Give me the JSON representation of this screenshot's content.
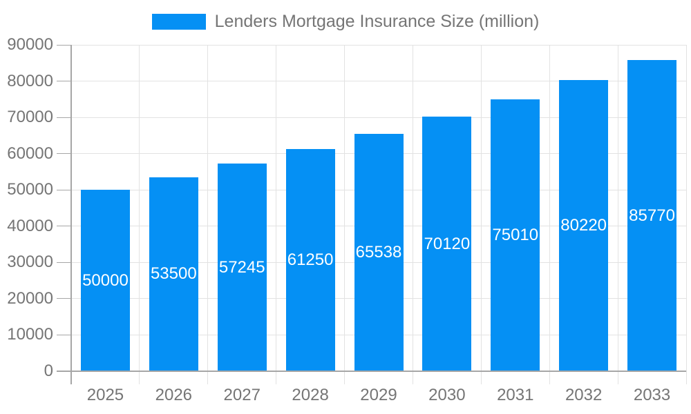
{
  "legend": {
    "label": "Lenders Mortgage Insurance Size (million)",
    "swatch_color": "#0590f4"
  },
  "chart_data": {
    "type": "bar",
    "title": "Lenders Mortgage Insurance Size (million)",
    "categories": [
      "2025",
      "2026",
      "2027",
      "2028",
      "2029",
      "2030",
      "2031",
      "2032",
      "2033"
    ],
    "values": [
      50000,
      53500,
      57245,
      61250,
      65538,
      70120,
      75010,
      80220,
      85770
    ],
    "xlabel": "",
    "ylabel": "",
    "ylim": [
      0,
      90000
    ],
    "ytick_interval": 10000,
    "ytick_labels": [
      "0",
      "10000",
      "20000",
      "30000",
      "40000",
      "50000",
      "60000",
      "70000",
      "80000",
      "90000"
    ],
    "grid": true,
    "legend_position": "top-center",
    "colors": {
      "bar": "#0590f4",
      "bar_label": "#ffffff",
      "axis_text": "#757575",
      "axis_line": "#a6a6a6",
      "gridline": "#e2e2e2",
      "background": "#ffffff"
    }
  }
}
